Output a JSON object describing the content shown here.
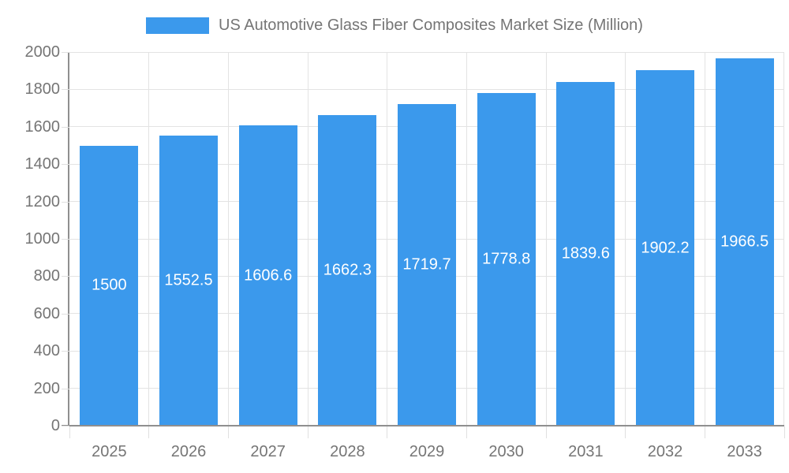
{
  "chart_data": {
    "type": "bar",
    "title": "US Automotive Glass Fiber Composites Market Size (Million)",
    "categories": [
      "2025",
      "2026",
      "2027",
      "2028",
      "2029",
      "2030",
      "2031",
      "2032",
      "2033"
    ],
    "values": [
      1500,
      1552.5,
      1606.6,
      1662.3,
      1719.7,
      1778.8,
      1839.6,
      1902.2,
      1966.5
    ],
    "value_labels": [
      "1500",
      "1552.5",
      "1606.6",
      "1662.3",
      "1719.7",
      "1778.8",
      "1839.6",
      "1902.2",
      "1966.5"
    ],
    "xlabel": "",
    "ylabel": "",
    "ylim": [
      0,
      2000
    ],
    "ytick_labels": [
      "0",
      "200",
      "400",
      "600",
      "800",
      "1000",
      "1200",
      "1400",
      "1600",
      "1800",
      "2000"
    ],
    "grid": true,
    "legend_position": "top",
    "colors": {
      "bar": "#3b99ec",
      "axis_line": "#8f8f8f",
      "gridline": "#e3e3e3",
      "tick": "#e0e0e0",
      "axis_text": "#757575",
      "legend_text": "#757575",
      "bar_label_text": "#ffffff",
      "background": "#ffffff"
    }
  }
}
